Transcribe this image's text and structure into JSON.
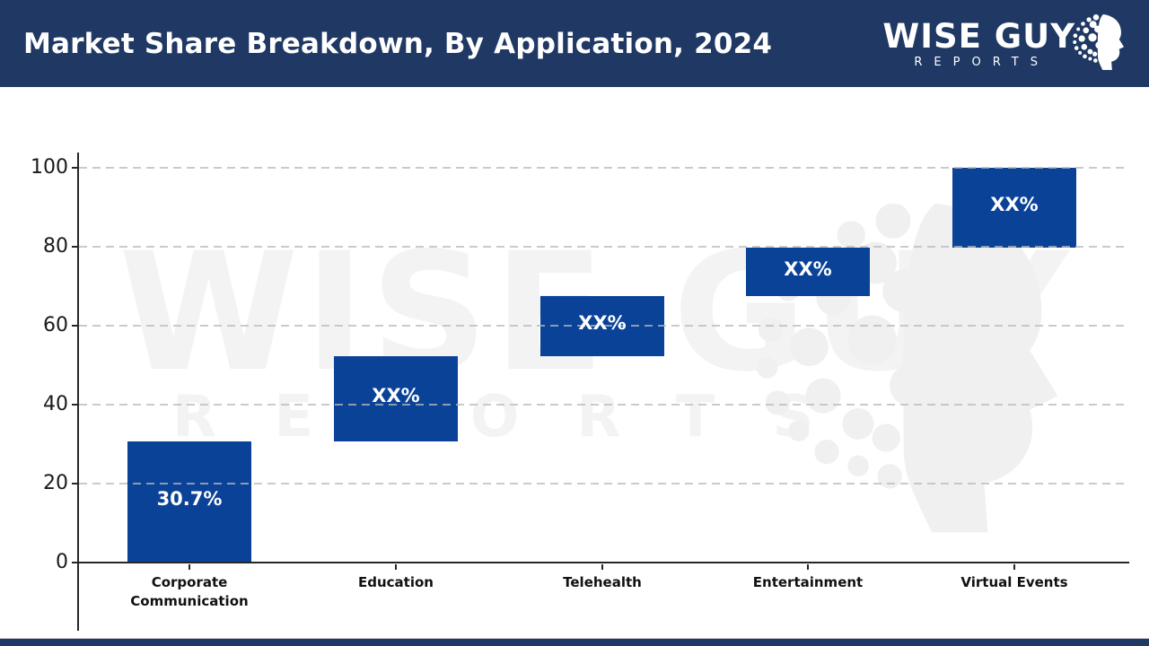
{
  "header": {
    "title": "Market Share Breakdown, By Application, 2024",
    "logo": {
      "line1": "WISE GUY",
      "line2": "REPORTS"
    }
  },
  "watermark": {
    "line1": "WISE GUY",
    "line2": "REPORTS"
  },
  "colors": {
    "header_bg": "#1f3864",
    "footer_bg": "#1f3864",
    "bar": "#0a4298",
    "axis": "#262626",
    "grid": "#b9b9b9",
    "bar_label": "#ffffff",
    "watermark": "#f3f3f4"
  },
  "chart_data": {
    "type": "bar",
    "subtype": "waterfall",
    "title": "Market Share Breakdown, By Application, 2024",
    "categories": [
      "Corporate Communication",
      "Education",
      "Telehealth",
      "Entertainment",
      "Virtual Events"
    ],
    "segments": [
      {
        "category": "Corporate Communication",
        "start": 0,
        "end": 30.7,
        "value": 30.7,
        "label": "30.7%"
      },
      {
        "category": "Education",
        "start": 30.7,
        "end": 52.3,
        "value": 21.6,
        "label": "XX%"
      },
      {
        "category": "Telehealth",
        "start": 52.3,
        "end": 67.5,
        "value": 15.2,
        "label": "XX%"
      },
      {
        "category": "Entertainment",
        "start": 67.5,
        "end": 79.8,
        "value": 12.3,
        "label": "XX%"
      },
      {
        "category": "Virtual Events",
        "start": 79.8,
        "end": 100,
        "value": 20.2,
        "label": "XX%"
      }
    ],
    "yticks": [
      0,
      20,
      40,
      60,
      80,
      100
    ],
    "ylim": [
      0,
      105
    ],
    "xlabel": "",
    "ylabel": "",
    "grid": "horizontal-dashed",
    "legend": false
  }
}
